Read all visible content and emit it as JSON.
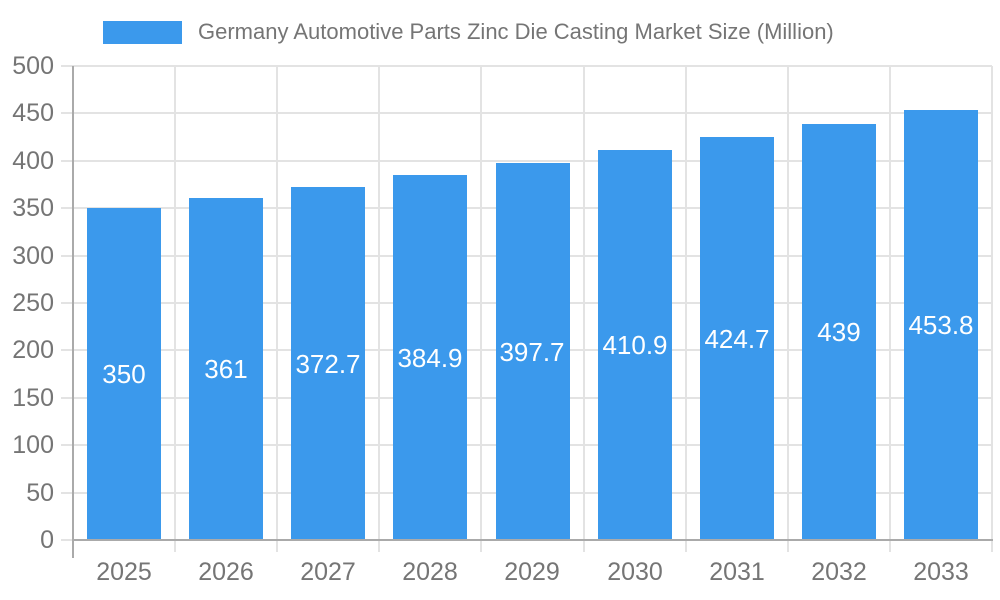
{
  "legend": {
    "label": "Germany Automotive Parts Zinc Die Casting Market Size (Million)"
  },
  "chart_data": {
    "type": "bar",
    "title": "Germany Automotive Parts Zinc Die Casting Market Size (Million)",
    "categories": [
      "2025",
      "2026",
      "2027",
      "2028",
      "2029",
      "2030",
      "2031",
      "2032",
      "2033"
    ],
    "values": [
      350,
      361,
      372.7,
      384.9,
      397.7,
      410.9,
      424.7,
      439,
      453.8
    ],
    "xlabel": "",
    "ylabel": "",
    "ylim": [
      0,
      500
    ],
    "ytick_step": 50,
    "yticks": [
      0,
      50,
      100,
      150,
      200,
      250,
      300,
      350,
      400,
      450,
      500
    ],
    "grid": true,
    "legend_position": "top-left",
    "value_labels_inside_bars": true,
    "colors": {
      "bar": "#3B99EC",
      "axis_line": "#AAAAAA",
      "gridline": "#E3E3E3",
      "axis_text": "#757575",
      "title_text": "#757575",
      "bar_label_text": "#FFFFFF",
      "background": "#FFFFFF"
    }
  }
}
